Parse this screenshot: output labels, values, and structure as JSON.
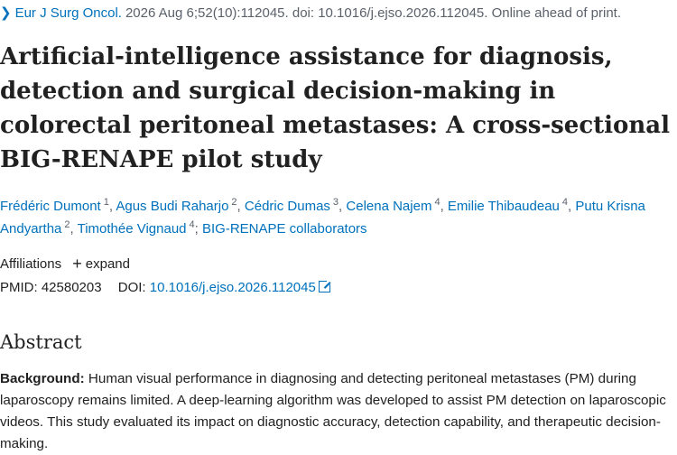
{
  "citation": {
    "journal": "Eur J Surg Oncol.",
    "details": "2026 Aug 6;52(10):112045. doi: 10.1016/j.ejso.2026.112045. Online ahead of print."
  },
  "title": "Artificial-intelligence assistance for diagnosis, detection and surgical decision-making in colorectal peritoneal metastases: A cross-sectional BIG-RENAPE pilot study",
  "authors": [
    {
      "name": "Frédéric Dumont",
      "aff": "1"
    },
    {
      "name": "Agus Budi Raharjo",
      "aff": "2"
    },
    {
      "name": "Cédric Dumas",
      "aff": "3"
    },
    {
      "name": "Celena Najem",
      "aff": "4"
    },
    {
      "name": "Emilie Thibaudeau",
      "aff": "4"
    },
    {
      "name": "Putu Krisna Andyartha",
      "aff": "2"
    },
    {
      "name": "Timothée Vignaud",
      "aff": "4"
    }
  ],
  "collaborators": "BIG-RENAPE collaborators",
  "affiliations": {
    "label": "Affiliations",
    "expand_label": "expand"
  },
  "ids": {
    "pmid_label": "PMID:",
    "pmid": "42580203",
    "doi_label": "DOI:",
    "doi": "10.1016/j.ejso.2026.112045"
  },
  "abstract": {
    "heading": "Abstract",
    "background_label": "Background:",
    "background_text": "Human visual performance in diagnosing and detecting peritoneal metastases (PM) during laparoscopy remains limited. A deep-learning algorithm was developed to assist PM detection on laparoscopic videos. This study evaluated its impact on diagnostic accuracy, detection capability, and therapeutic decision-making."
  }
}
